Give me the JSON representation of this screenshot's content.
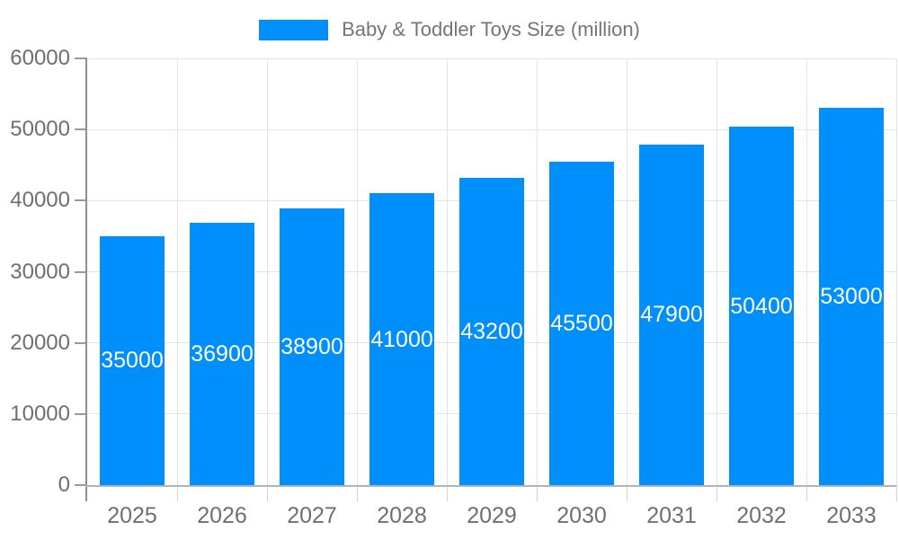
{
  "chart_data": {
    "type": "bar",
    "legend_label": "Baby & Toddler Toys Size (million)",
    "categories": [
      "2025",
      "2026",
      "2027",
      "2028",
      "2029",
      "2030",
      "2031",
      "2032",
      "2033"
    ],
    "values": [
      35000,
      36900,
      38900,
      41000,
      43200,
      45500,
      47900,
      50400,
      53000
    ],
    "bar_labels": [
      "35000",
      "36900",
      "38900",
      "41000",
      "43200",
      "45500",
      "47900",
      "50400",
      "53000"
    ],
    "ylim": [
      0,
      60000
    ],
    "yticks": [
      0,
      10000,
      20000,
      30000,
      40000,
      50000,
      60000
    ],
    "ytick_labels": [
      "0",
      "10000",
      "20000",
      "30000",
      "40000",
      "50000",
      "60000"
    ],
    "grid": true,
    "legend_position": "top",
    "colors": {
      "bar": "#008FFB",
      "bar_label": "#FFFFFF",
      "axis_label": "#6F6F6F",
      "legend_text": "#757575",
      "gridline": "#E4E4E4",
      "y_axis_line": "#8F8F8F",
      "baseline": "#B3B3B3",
      "x_tick": "#D4D4D4",
      "y_tick": "#9A9A9A"
    }
  }
}
